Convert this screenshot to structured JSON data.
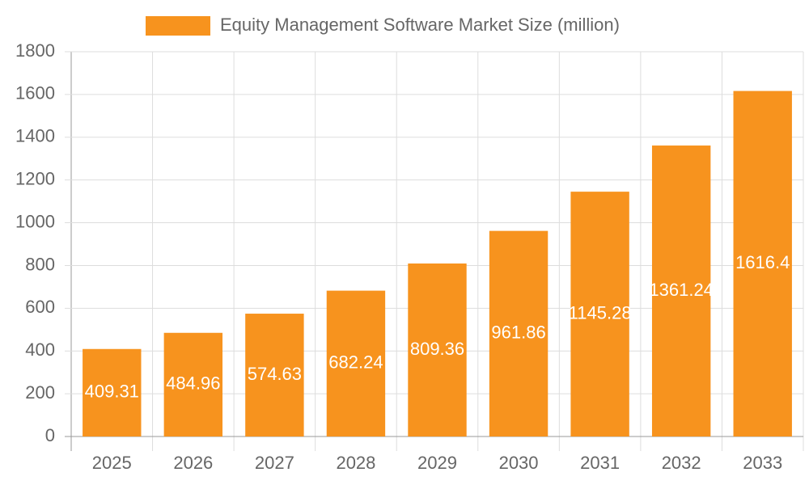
{
  "chart_data": {
    "type": "bar",
    "series": [
      {
        "name": "Equity Management Software Market Size (million)",
        "color": "#f7931e",
        "values": [
          409.31,
          484.96,
          574.63,
          682.24,
          809.36,
          961.86,
          1145.28,
          1361.24,
          1616.4
        ]
      }
    ],
    "categories": [
      "2025",
      "2026",
      "2027",
      "2028",
      "2029",
      "2030",
      "2031",
      "2032",
      "2033"
    ],
    "ylim": [
      0,
      1800
    ],
    "yticks": [
      0,
      200,
      400,
      600,
      800,
      1000,
      1200,
      1400,
      1600,
      1800
    ],
    "grid": true,
    "legend": "top"
  }
}
